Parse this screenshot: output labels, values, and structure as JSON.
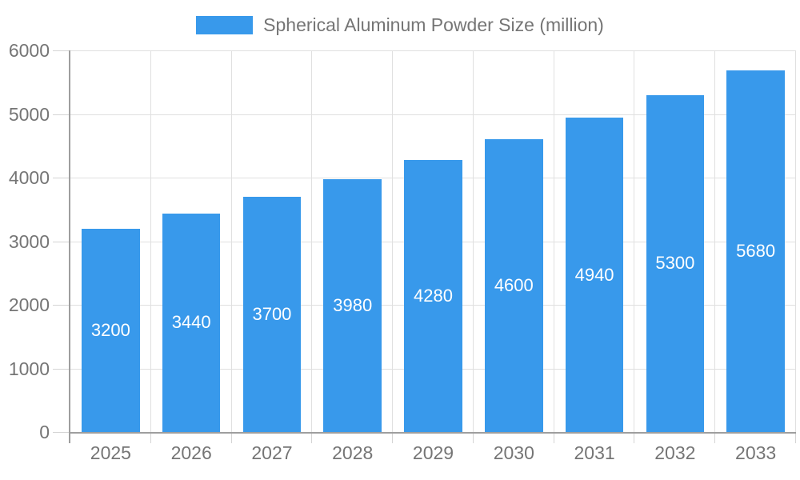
{
  "chart_data": {
    "type": "bar",
    "title": "Spherical Aluminum Powder Size (million)",
    "series_name": "Spherical Aluminum Powder Size (million)",
    "categories": [
      "2025",
      "2026",
      "2027",
      "2028",
      "2029",
      "2030",
      "2031",
      "2032",
      "2033"
    ],
    "values": [
      3200,
      3440,
      3700,
      3980,
      4280,
      4600,
      4940,
      5300,
      5680
    ],
    "xlabel": "",
    "ylabel": "",
    "ylim": [
      0,
      6000
    ],
    "y_ticks": [
      0,
      1000,
      2000,
      3000,
      4000,
      5000,
      6000
    ],
    "grid": true,
    "legend_position": "top-center",
    "value_labels": "inside-center",
    "colors": {
      "bar": "#3899EB",
      "value_label": "#ffffff",
      "axis_label": "#757575",
      "legend_text": "#757575",
      "gridline": "#e0e0e0",
      "tick": "#d4d4d4",
      "axis_line": "#9e9e9e",
      "background": "#ffffff"
    }
  }
}
